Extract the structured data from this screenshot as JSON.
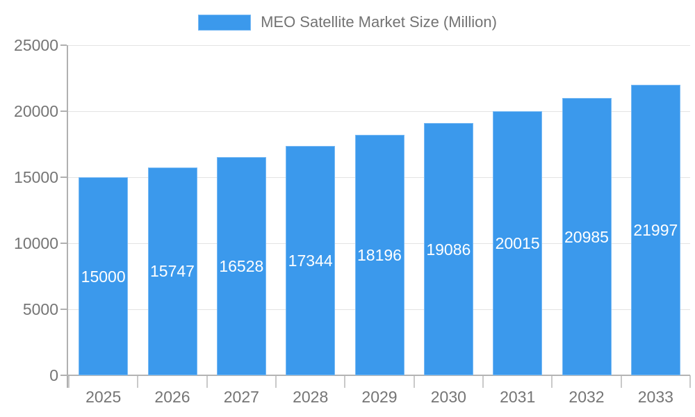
{
  "chart_data": {
    "type": "bar",
    "title": "",
    "legend": {
      "label": "MEO Satellite Market Size (Million)",
      "position": "top"
    },
    "categories": [
      "2025",
      "2026",
      "2027",
      "2028",
      "2029",
      "2030",
      "2031",
      "2032",
      "2033"
    ],
    "values": [
      15000,
      15747,
      16528,
      17344,
      18196,
      19086,
      20015,
      20985,
      21997
    ],
    "value_labels": [
      "15000",
      "15747",
      "16528",
      "17344",
      "18196",
      "19086",
      "20015",
      "20985",
      "21997"
    ],
    "xlabel": "",
    "ylabel": "",
    "ylim": [
      0,
      25000
    ],
    "yticks": [
      0,
      5000,
      10000,
      15000,
      20000,
      25000
    ],
    "ytick_labels": [
      "0",
      "5000",
      "10000",
      "15000",
      "20000",
      "25000"
    ],
    "grid": "horizontal",
    "legend_position": "top",
    "colors": {
      "bar_fill": "#3b99ec",
      "bar_border": "#79baf4",
      "value_text": "#ffffff",
      "axis_text": "#757575",
      "grid_line": "#e3e3e3",
      "axis_line": "#b0b0b0",
      "tick_line": "#c9c9c9"
    }
  }
}
